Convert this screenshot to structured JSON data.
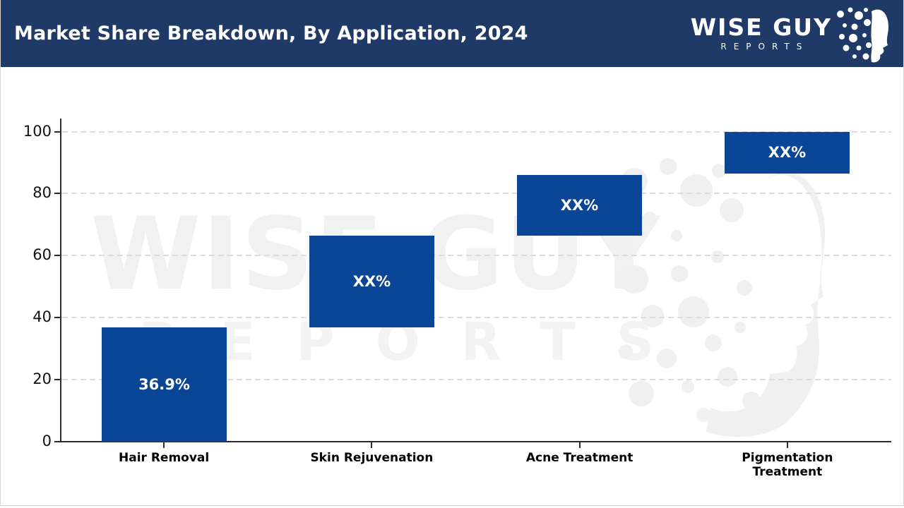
{
  "header": {
    "title": "Market Share Breakdown, By Application, 2024",
    "logo": {
      "line1": "WISE GUY",
      "line2": "REPORTS"
    }
  },
  "watermark": {
    "line1": "WISE GUY",
    "line2": "REPORTS"
  },
  "colors": {
    "header_bg": "#1f3a66",
    "bar": "#0b4596",
    "grid": "#dcdcdc",
    "axis": "#2b2b2b",
    "bar_label": "#ffffff",
    "watermark": "#f0f0f0"
  },
  "chart_data": {
    "type": "bar",
    "subtype": "waterfall",
    "title": "Market Share Breakdown, By Application, 2024",
    "categories": [
      "Hair Removal",
      "Skin Rejuvenation",
      "Acne Treatment",
      "Pigmentation Treatment"
    ],
    "series": [
      {
        "name": "Market Share %",
        "segments": [
          {
            "category": "Hair Removal",
            "start": 0,
            "end": 36.9,
            "label": "36.9%"
          },
          {
            "category": "Skin Rejuvenation",
            "start": 36.9,
            "end": 66.5,
            "label": "XX%"
          },
          {
            "category": "Acne Treatment",
            "start": 66.5,
            "end": 86.0,
            "label": "XX%"
          },
          {
            "category": "Pigmentation Treatment",
            "start": 86.5,
            "end": 100,
            "label": "XX%"
          }
        ]
      }
    ],
    "xlabel": "",
    "ylabel": "",
    "ylim": [
      0,
      100
    ],
    "yticks": [
      0,
      20,
      40,
      60,
      80,
      100
    ],
    "grid": "horizontal-dashed",
    "legend": "none"
  }
}
